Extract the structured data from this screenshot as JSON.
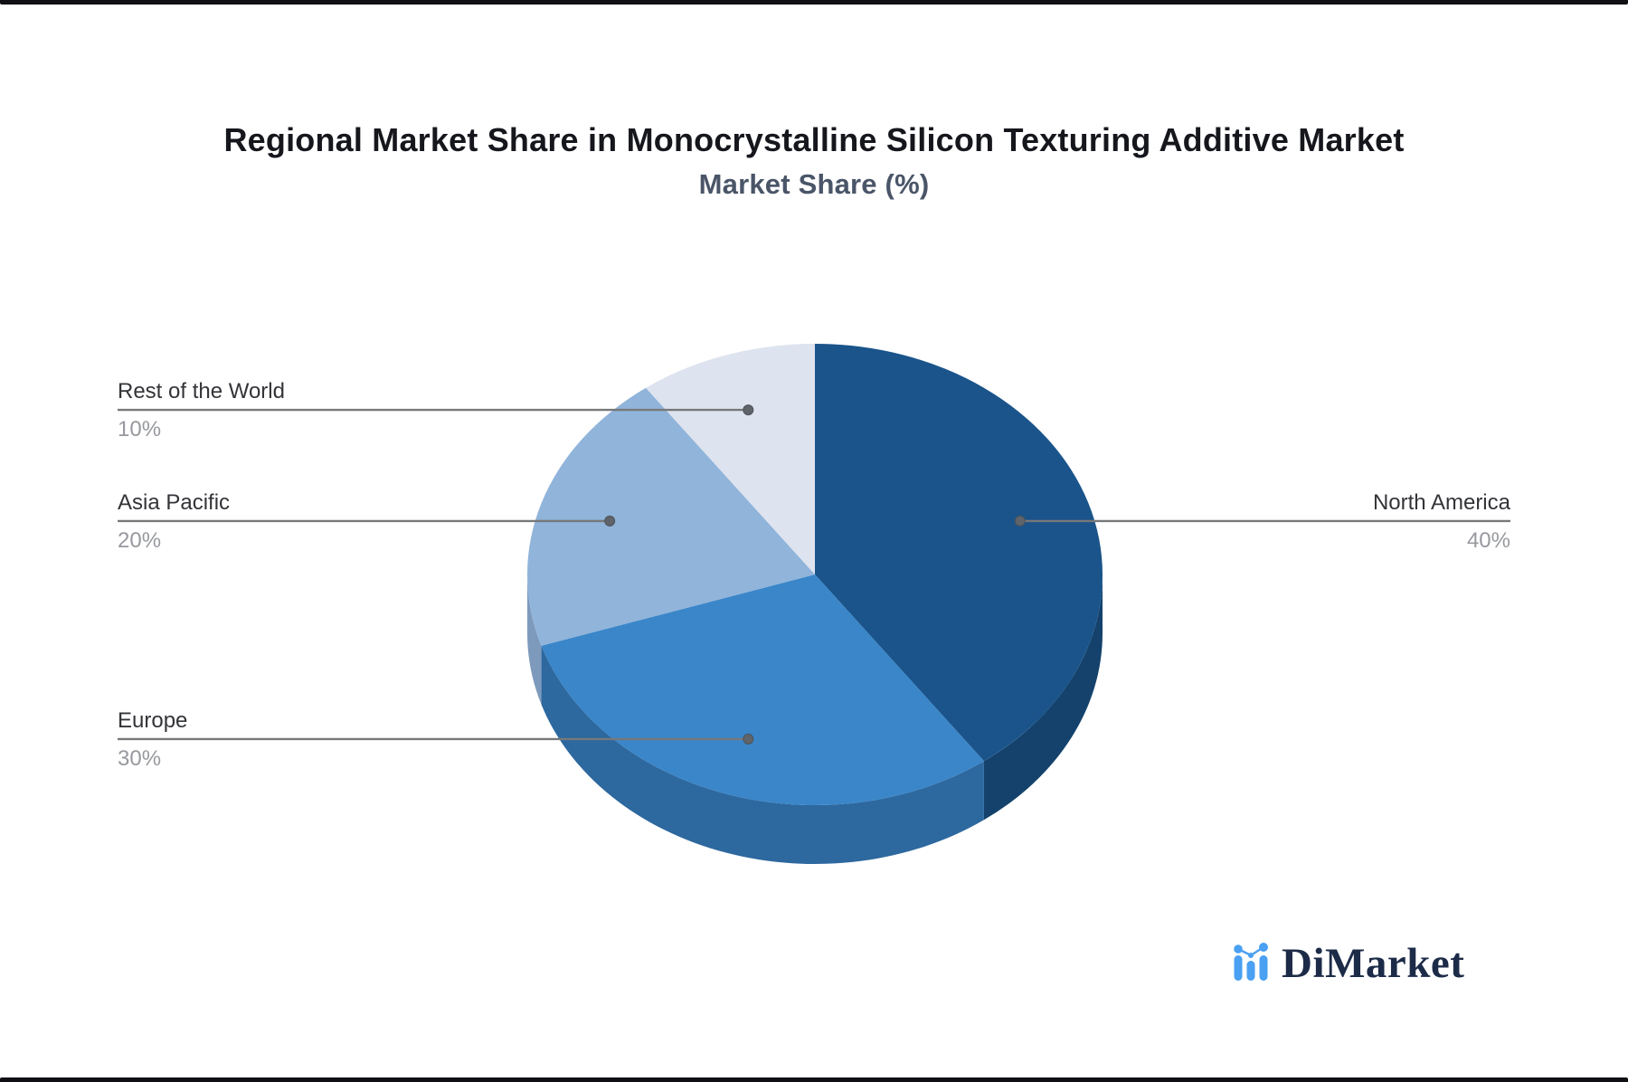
{
  "title": "Regional Market Share in Monocrystalline Silicon Texturing Additive Market",
  "subtitle": "Market Share (%)",
  "logo": {
    "text": "DiMarket",
    "icon": "bar-line-chart-icon",
    "icon_color": "#4aa0f2",
    "text_color": "#1c2b47"
  },
  "colors": {
    "title": "#16171d",
    "subtitle": "#4a5568",
    "label": "#333438",
    "percent": "#97999e",
    "leader_line": "#77787a",
    "leader_dot": "#5f646b",
    "background": "#ffffff"
  },
  "chart_data": {
    "type": "pie",
    "style": "3d",
    "title": "Regional Market Share in Monocrystalline Silicon Texturing Additive Market",
    "subtitle": "Market Share (%)",
    "unit": "%",
    "start_angle_deg": 0,
    "direction": "clockwise",
    "legend_position": "callout-labels",
    "slices": [
      {
        "label": "North America",
        "value": 40,
        "color": "#1a548a",
        "side_color": "#14426c"
      },
      {
        "label": "Europe",
        "value": 30,
        "color": "#3a86c9",
        "side_color": "#2d689f"
      },
      {
        "label": "Asia Pacific",
        "value": 20,
        "color": "#90b4da",
        "side_color": "#7d9abc"
      },
      {
        "label": "Rest of the World",
        "value": 10,
        "color": "#dde3ef",
        "side_color": "#b3bccc"
      }
    ]
  }
}
